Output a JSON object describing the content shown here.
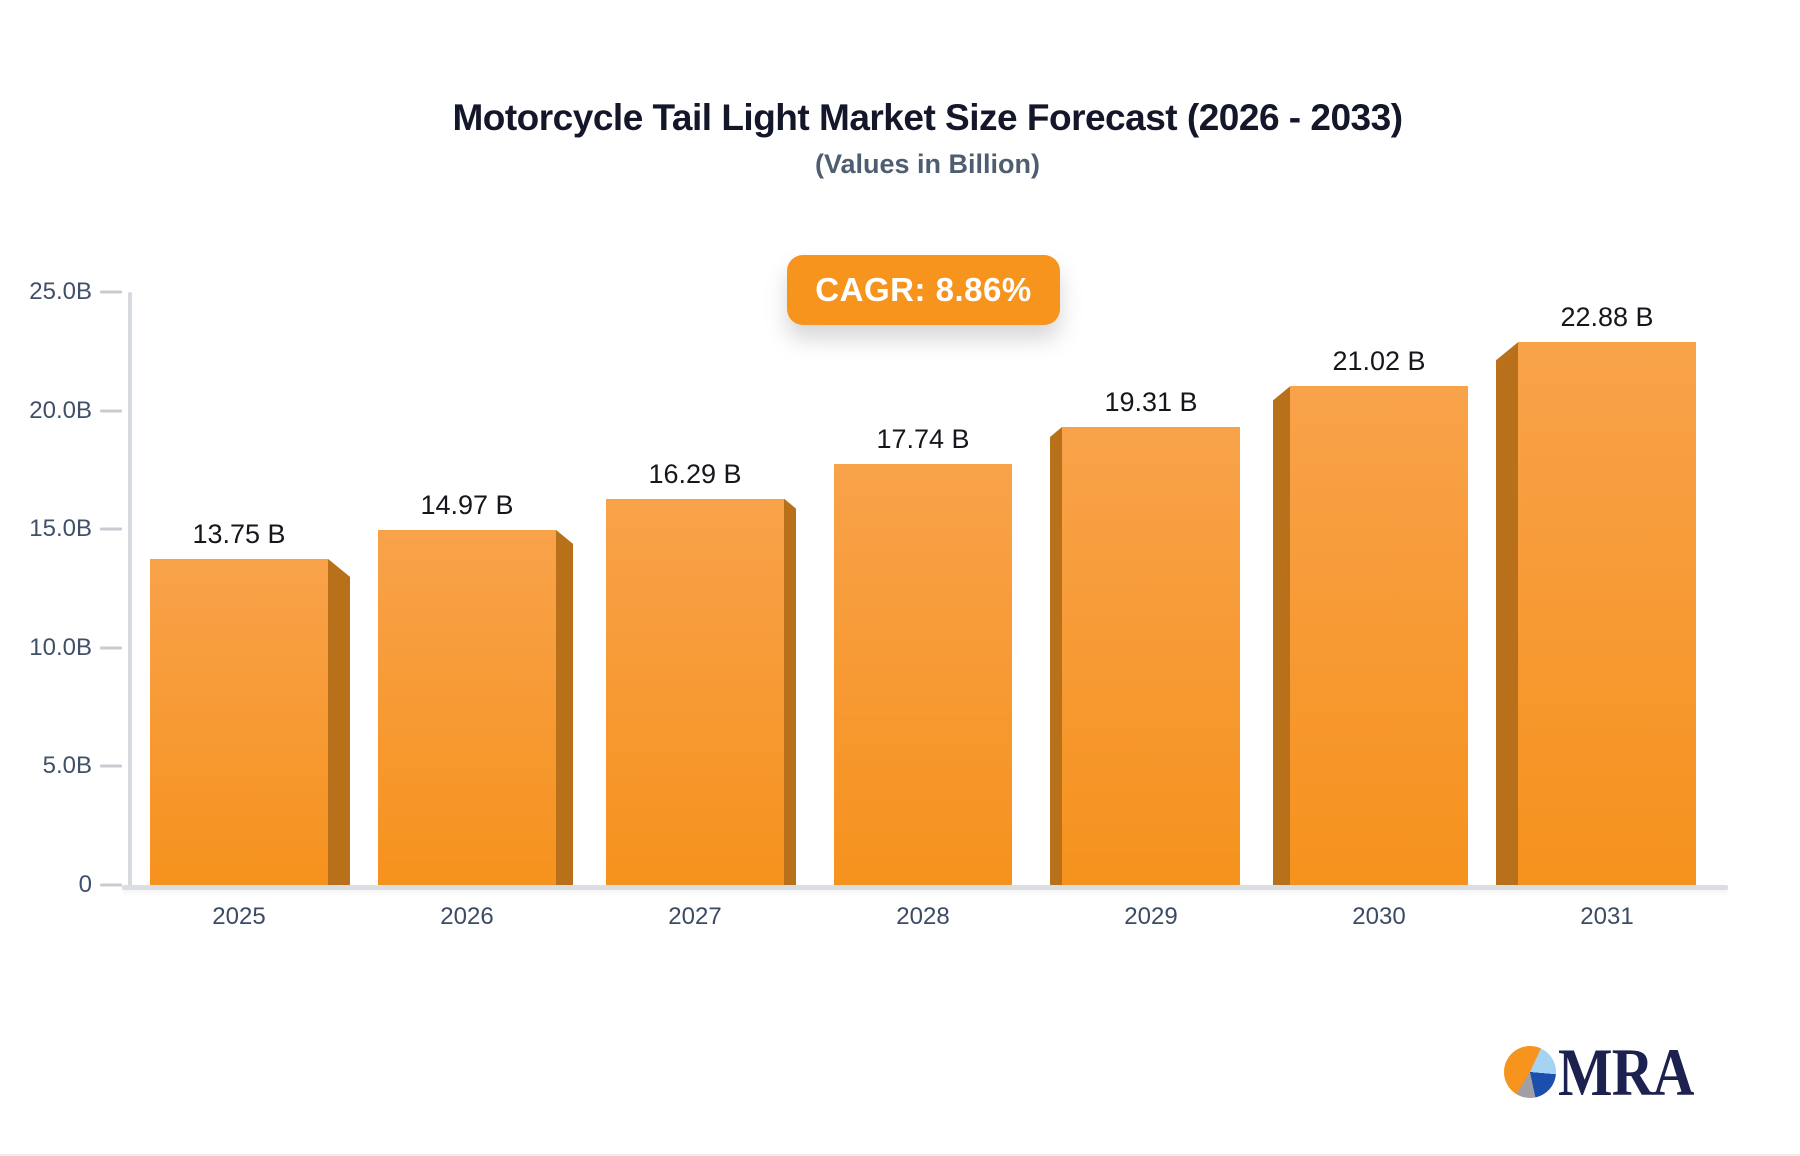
{
  "page": {
    "title": "Motorcycle Tail Light Market Size Forecast (2026 - 2033)",
    "subtitle": "(Values in Billion)",
    "badge_label": "CAGR: 8.86%"
  },
  "colors": {
    "badge_background": "#f7941e",
    "bar_face_top": "#f8a24a",
    "bar_face_bottom": "#f6921d",
    "bar_side": "#b9701a",
    "axis_line": "#d6d9de",
    "tick_label": "#40506a",
    "value_label": "#15171c",
    "title_text": "#14172a",
    "subtitle_text": "#4e5d70"
  },
  "chart_data": {
    "type": "bar",
    "title": "Motorcycle Tail Light Market Size Forecast (2026 - 2033)",
    "subtitle": "(Values in Billion)",
    "annotation": "CAGR: 8.86%",
    "xlabel": "",
    "ylabel": "",
    "ylim": [
      0,
      25
    ],
    "grid": false,
    "legend": "none",
    "categories": [
      "2025",
      "2026",
      "2027",
      "2028",
      "2029",
      "2030",
      "2031"
    ],
    "values": [
      13.75,
      14.97,
      16.29,
      17.74,
      19.31,
      21.02,
      22.88
    ],
    "value_labels": [
      "13.75 B",
      "14.97 B",
      "16.29 B",
      "17.74 B",
      "19.31 B",
      "21.02 B",
      "22.88 B"
    ],
    "yticks": [
      {
        "value": 25,
        "label": "25.0B"
      },
      {
        "value": 20,
        "label": "20.0B"
      },
      {
        "value": 15,
        "label": "15.0B"
      },
      {
        "value": 10,
        "label": "10.0B"
      },
      {
        "value": 5,
        "label": "5.0B"
      },
      {
        "value": 0,
        "label": "0"
      }
    ]
  },
  "logo": {
    "text": "MRA",
    "pie_segments": {
      "orange": "#f7941e",
      "light_blue": "#a6d3f2",
      "royal_blue": "#1b4fae",
      "gray": "#a19fa5"
    }
  }
}
